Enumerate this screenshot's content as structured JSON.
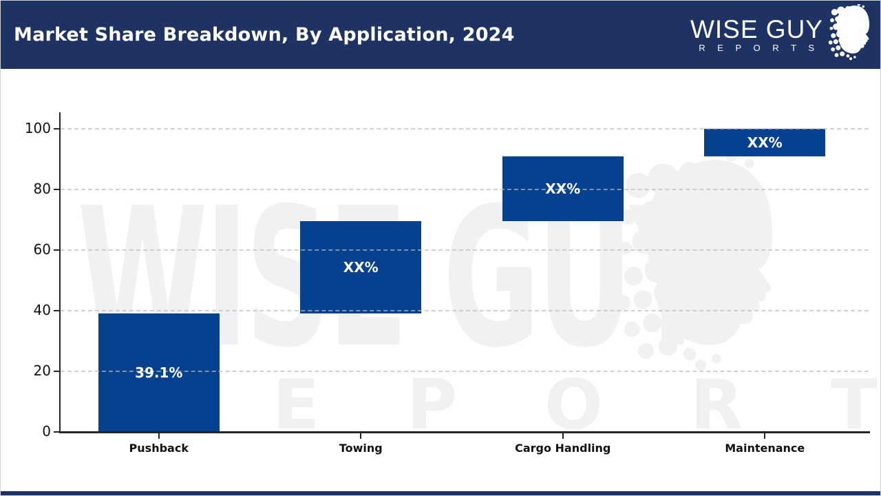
{
  "header": {
    "title": "Market Share Breakdown, By Application, 2024",
    "logo": {
      "line1": "WISE GUY",
      "line2": "R E P O R T S"
    }
  },
  "watermark": {
    "line1": "WISE GUY",
    "line2": "R E P O R T S"
  },
  "colors": {
    "header_navy": "#1e3263",
    "bar_blue": "#05418f",
    "bar_label_white": "#ffffff",
    "gridline_gray": "#d4d4d4",
    "axis_black": "#262626",
    "watermark_gray": "#f1f1f4"
  },
  "chart_data": {
    "type": "bar",
    "subtype": "floating-waterfall",
    "title": "Market Share Breakdown, By Application, 2024",
    "xlabel": "",
    "ylabel": "",
    "categories": [
      "Pushback",
      "Towing",
      "Cargo Handling",
      "Maintenance"
    ],
    "segments": [
      {
        "category": "Pushback",
        "start": 0,
        "end": 39.1,
        "label": "39.1%"
      },
      {
        "category": "Towing",
        "start": 39.1,
        "end": 69.5,
        "label": "XX%"
      },
      {
        "category": "Cargo Handling",
        "start": 69.5,
        "end": 90.9,
        "label": "XX%"
      },
      {
        "category": "Maintenance",
        "start": 90.9,
        "end": 100,
        "label": "XX%"
      }
    ],
    "yticks": [
      0,
      20,
      40,
      60,
      80,
      100
    ],
    "ylim": [
      0,
      105.5
    ],
    "grid": "horizontal-dashed",
    "legend": "none"
  }
}
